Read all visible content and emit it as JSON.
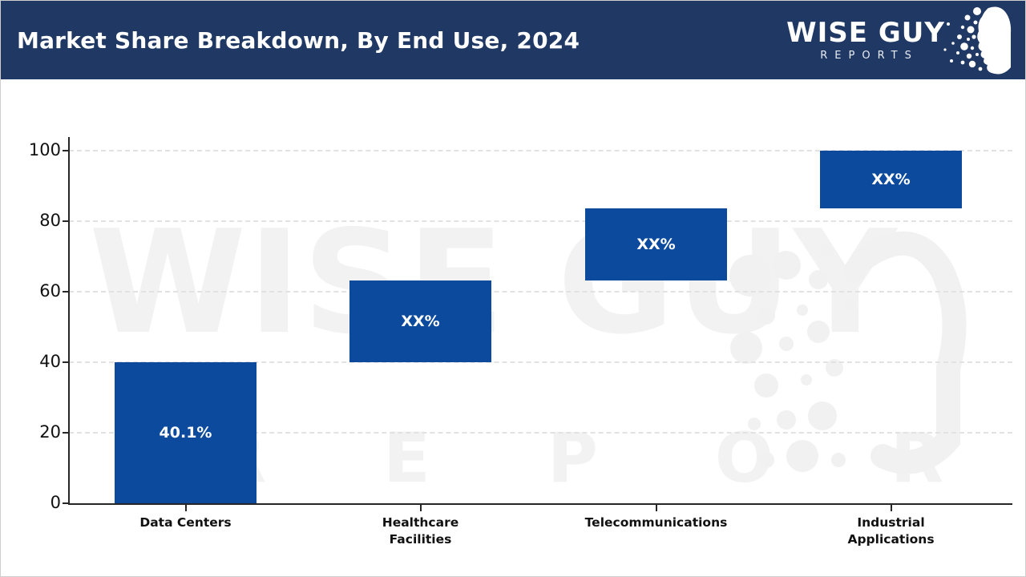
{
  "header": {
    "title": "Market Share Breakdown, By End Use, 2024",
    "logo": {
      "line1": "WISE GUY",
      "line2": "REPORTS"
    }
  },
  "watermark": {
    "line1": "WISE GUY",
    "line2": "R E P O R T S"
  },
  "colors": {
    "header_bg": "#1F3864",
    "bar_fill": "#0C4A9E",
    "bar_label": "#FFFFFF",
    "axis": "#262626",
    "gridline": "#E2E2E2",
    "watermark": "#F2F2F2"
  },
  "chart_data": {
    "type": "bar",
    "subtype": "waterfall",
    "title": "Market Share Breakdown, By End Use, 2024",
    "xlabel": "",
    "ylabel": "",
    "categories": [
      "Data Centers",
      "Healthcare\nFacilities",
      "Telecommunications",
      "Industrial\nApplications"
    ],
    "segments": [
      {
        "category": "Data Centers",
        "start": 0,
        "end": 40.1,
        "label": "40.1%"
      },
      {
        "category": "Healthcare Facilities",
        "start": 40.1,
        "end": 63.2,
        "label": "XX%"
      },
      {
        "category": "Telecommunications",
        "start": 63.2,
        "end": 83.6,
        "label": "XX%"
      },
      {
        "category": "Industrial Applications",
        "start": 83.6,
        "end": 100,
        "label": "XX%"
      }
    ],
    "ylim": [
      0,
      100
    ],
    "yticks": [
      0,
      20,
      40,
      60,
      80,
      100
    ],
    "grid": "horizontal-dashed",
    "legend": "none"
  }
}
